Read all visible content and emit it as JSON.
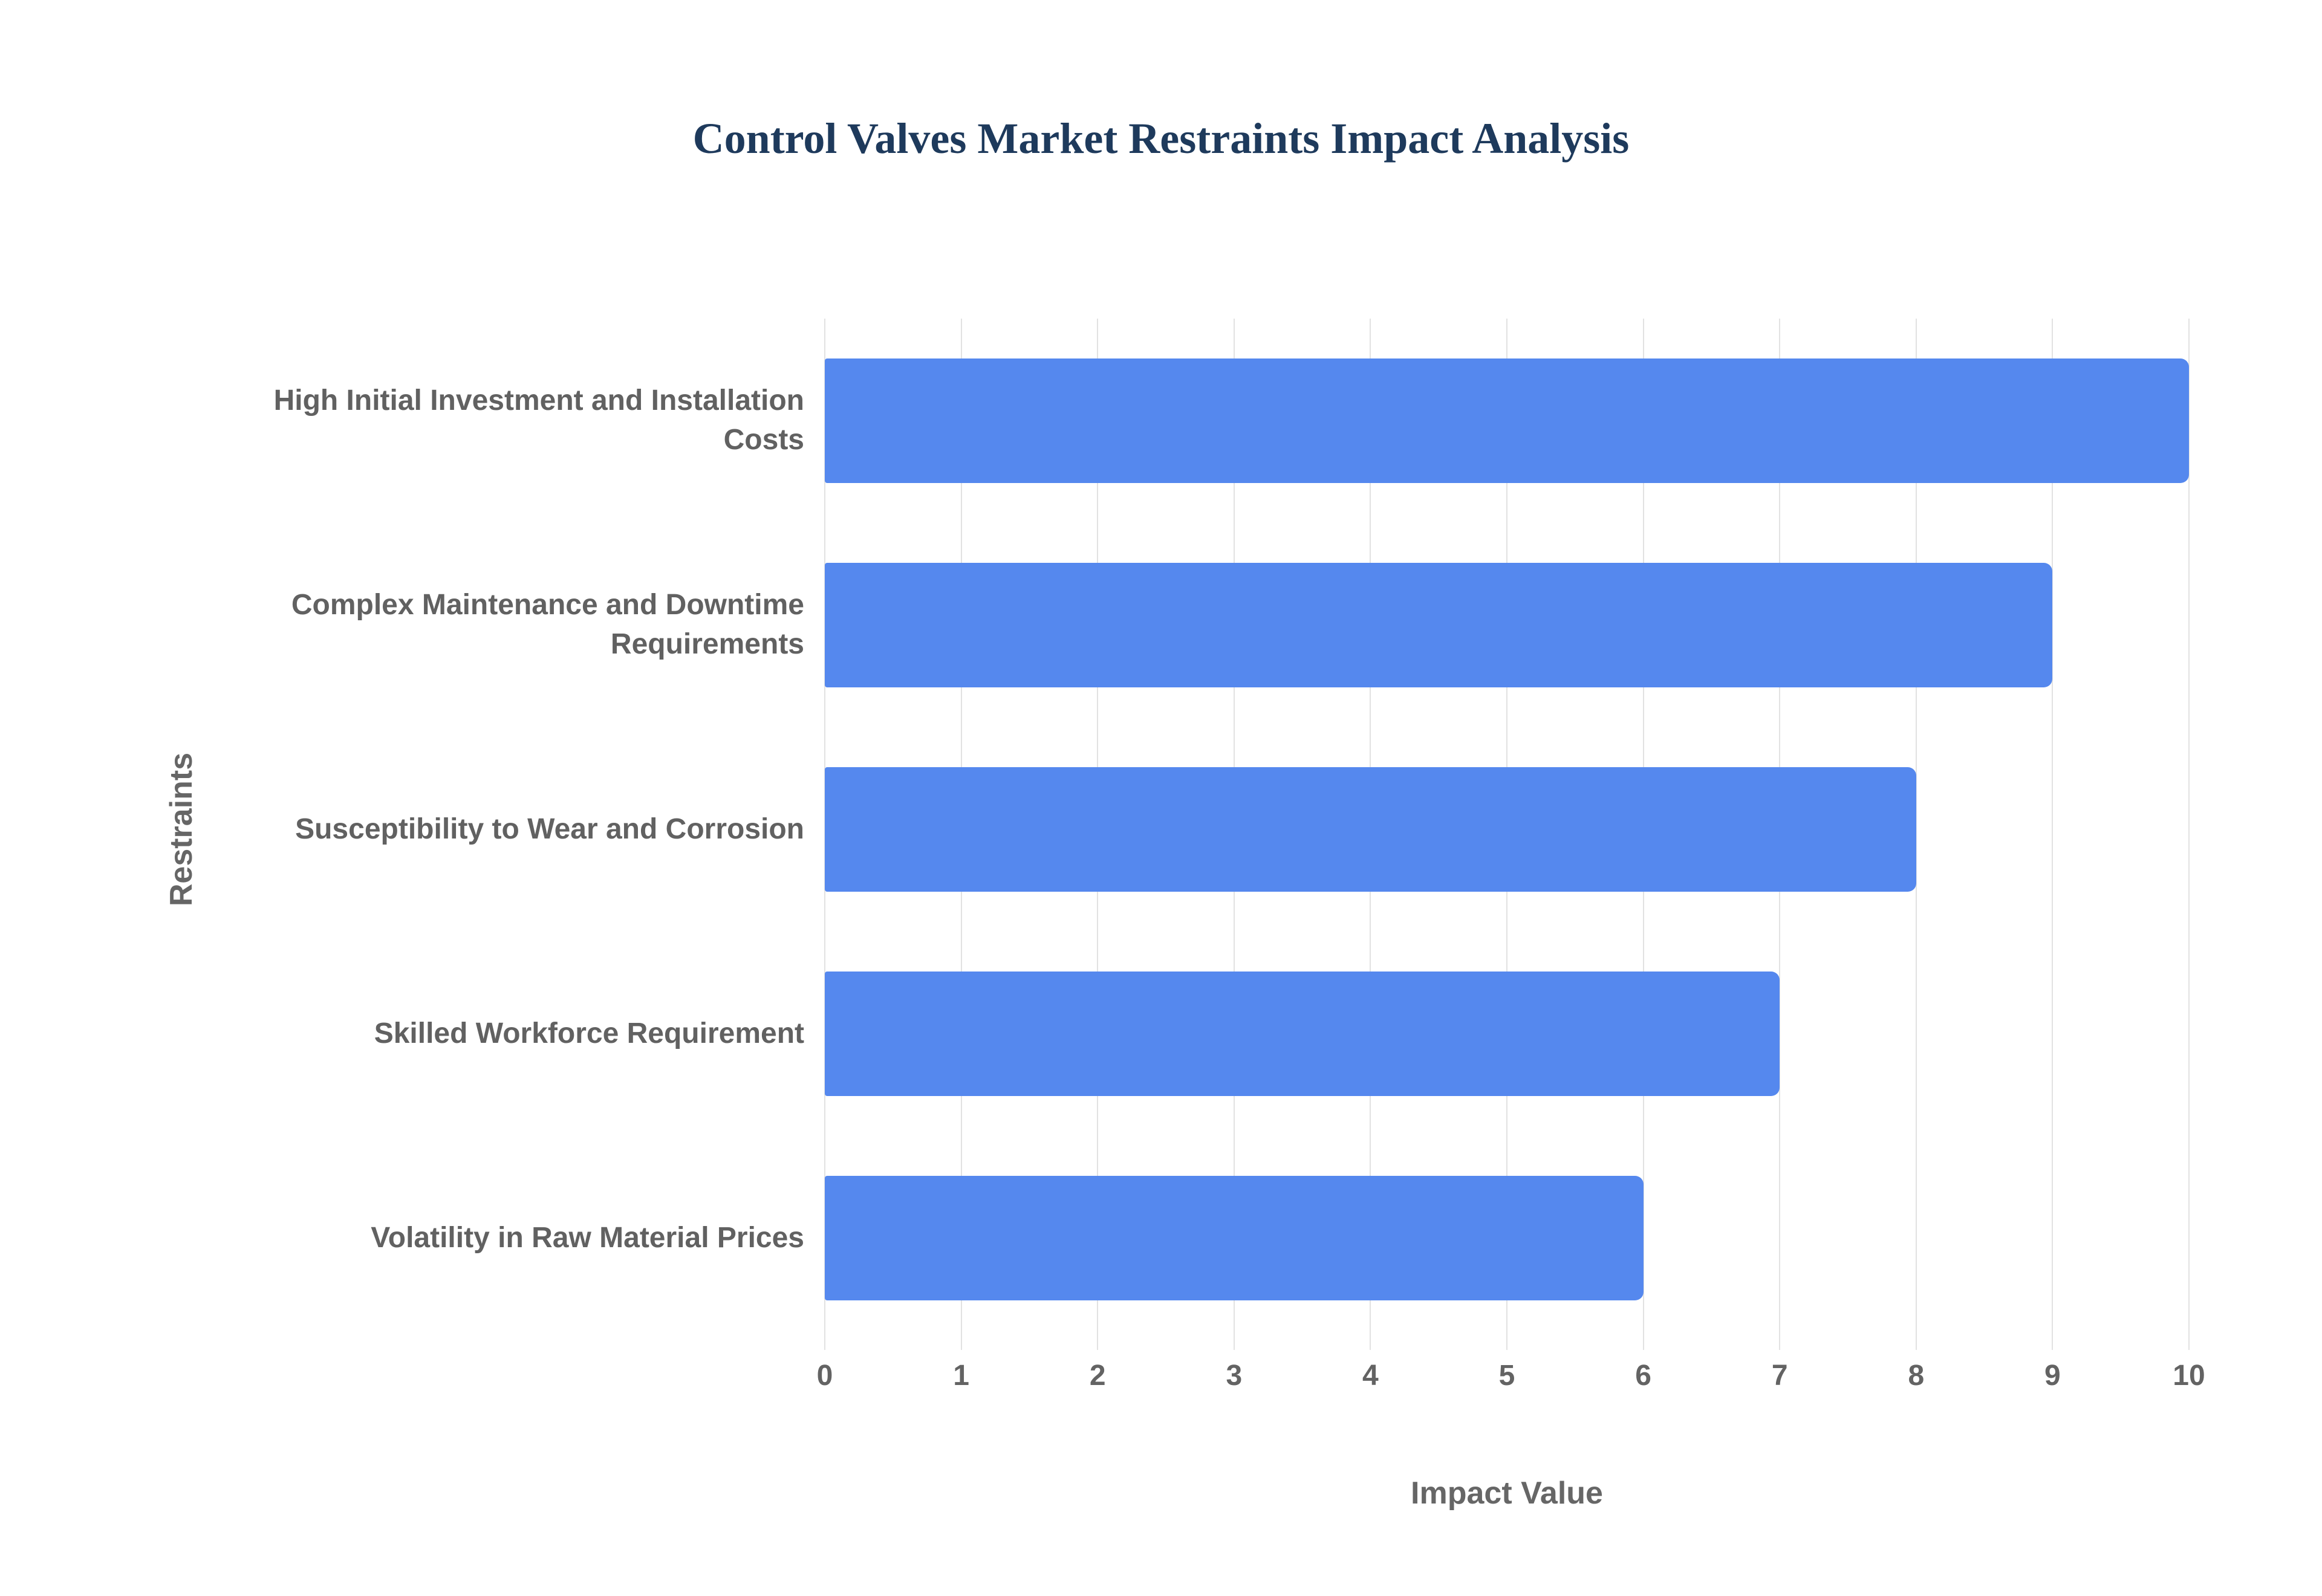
{
  "chart_data": {
    "type": "bar",
    "orientation": "horizontal",
    "title": "Control Valves Market Restraints Impact Analysis",
    "xlabel": "Impact Value",
    "ylabel": "Restraints",
    "categories": [
      "High Initial Investment and Installation Costs",
      "Complex Maintenance and Downtime Requirements",
      "Susceptibility to Wear and Corrosion",
      "Skilled Workforce Requirement",
      "Volatility in Raw Material Prices"
    ],
    "values": [
      10,
      9,
      8,
      7,
      6
    ],
    "xlim": [
      0,
      10
    ],
    "xticks": [
      0,
      1,
      2,
      3,
      4,
      5,
      6,
      7,
      8,
      9,
      10
    ],
    "grid": "vertical",
    "legend": "none"
  },
  "colors": {
    "bar": "#5588ee",
    "grid": "#e2e2e2",
    "title": "#1e3a5c",
    "axis_label": "#666666",
    "tick_label": "#636363",
    "category_label": "#616161",
    "background": "#ffffff"
  }
}
